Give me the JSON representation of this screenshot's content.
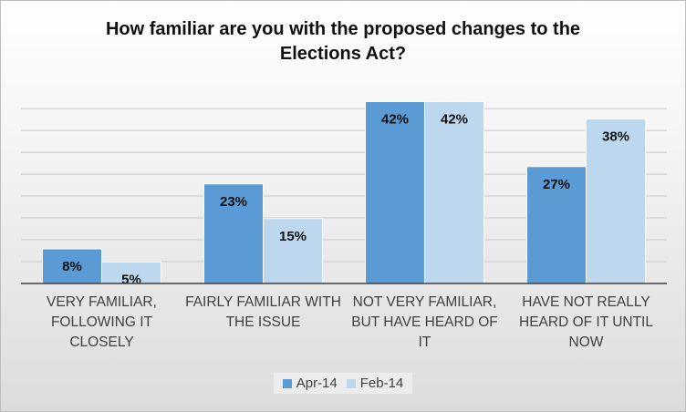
{
  "chart_data": {
    "type": "bar",
    "title_lines": [
      "How familiar are you with the proposed changes to the",
      "Elections Act?"
    ],
    "categories": [
      [
        "VERY FAMILIAR,",
        "FOLLOWING IT",
        "CLOSELY"
      ],
      [
        "FAIRLY FAMILIAR WITH",
        "THE ISSUE"
      ],
      [
        "NOT VERY FAMILIAR,",
        "BUT HAVE HEARD OF",
        "IT"
      ],
      [
        "HAVE NOT REALLY",
        "HEARD OF IT UNTIL",
        "NOW"
      ]
    ],
    "series": [
      {
        "name": "Apr-14",
        "values": [
          8,
          23,
          42,
          27
        ],
        "labels": [
          "8%",
          "23%",
          "42%",
          "27%"
        ],
        "color": "#5b9bd5"
      },
      {
        "name": "Feb-14",
        "values": [
          5,
          15,
          42,
          38
        ],
        "labels": [
          "5%",
          "15%",
          "42%",
          "38%"
        ],
        "color": "#bdd7ee"
      }
    ],
    "ylim": [
      0,
      42
    ],
    "gridlines": true,
    "legend_position": "bottom"
  }
}
